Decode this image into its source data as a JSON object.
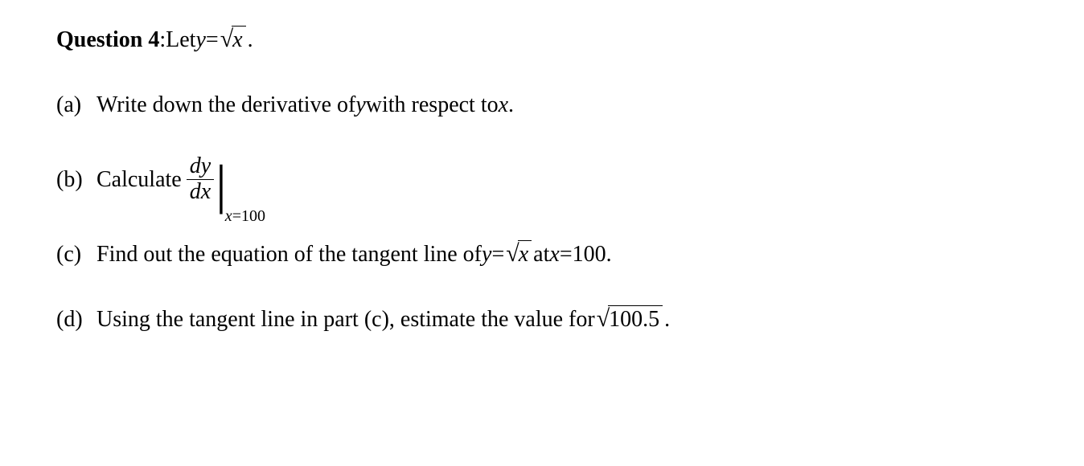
{
  "colors": {
    "text": "#000000",
    "background": "#ffffff"
  },
  "typography": {
    "font_family": "Times New Roman, serif",
    "body_font_size_pt": 21,
    "sub_font_size_pt": 15
  },
  "question": {
    "label_bold": "Question 4",
    "colon_space": ": ",
    "intro_text": "Let ",
    "y_var": "y",
    "equals": " = ",
    "sqrt_arg": "x",
    "period": "."
  },
  "parts": {
    "a": {
      "label": "(a)",
      "text1": "Write down the derivative of ",
      "y_var": "y",
      "text2": " with respect to ",
      "x_var": "x",
      "period": "."
    },
    "b": {
      "label": "(b)",
      "text1": "Calculate ",
      "frac_num_d": "d",
      "frac_num_y": "y",
      "frac_den_d": "d",
      "frac_den_x": "x",
      "eval_x": "x",
      "eval_eq": "=",
      "eval_val": "100"
    },
    "c": {
      "label": "(c)",
      "text1": "Find out the equation of the tangent line of ",
      "y_var": "y",
      "equals": " = ",
      "sqrt_arg": "x",
      "text2": " at ",
      "x_var": "x",
      "equals2": " = ",
      "val": "100",
      "period": "."
    },
    "d": {
      "label": "(d)",
      "text1": "Using the tangent line in part (c), estimate the value for ",
      "sqrt_arg": "100.5",
      "period": "."
    }
  }
}
